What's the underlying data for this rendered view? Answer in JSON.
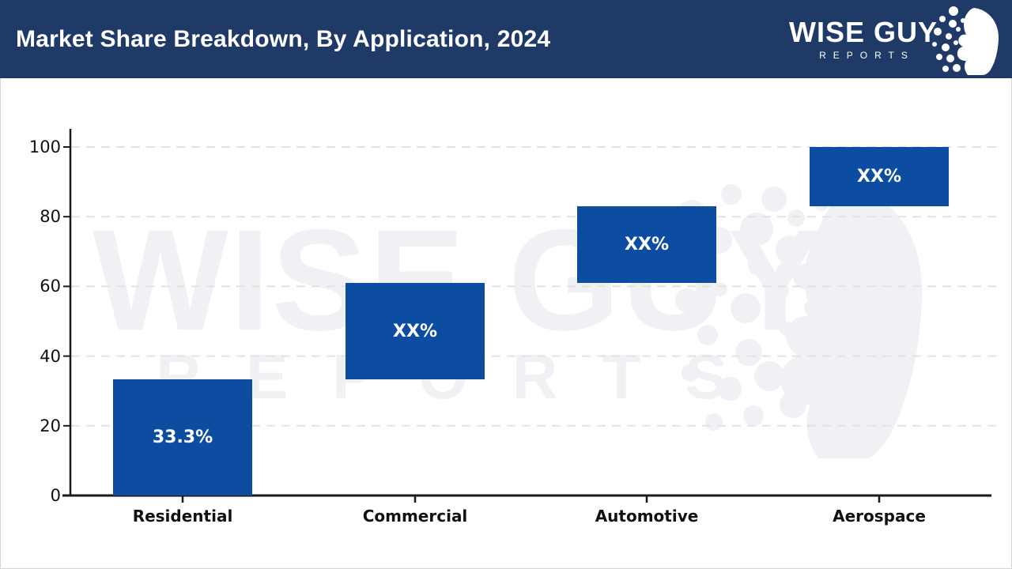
{
  "header": {
    "title": "Market Share Breakdown, By Application, 2024",
    "bg_color": "#203a68",
    "logo": {
      "line1": "WISE GUY",
      "line2": "REPORTS"
    }
  },
  "watermark": {
    "line1": "WISE GUY",
    "line2": "REPORTS"
  },
  "chart_data": {
    "type": "bar",
    "subtype": "waterfall",
    "categories": [
      "Residential",
      "Commercial",
      "Automotive",
      "Aerospace"
    ],
    "segments": [
      {
        "category": "Residential",
        "from": 0,
        "to": 33.3,
        "label": "33.3%"
      },
      {
        "category": "Commercial",
        "from": 33.3,
        "to": 61,
        "label": "XX%"
      },
      {
        "category": "Automotive",
        "from": 61,
        "to": 83,
        "label": "XX%"
      },
      {
        "category": "Aerospace",
        "from": 83,
        "to": 100,
        "label": "XX%"
      }
    ],
    "ylim": [
      0,
      100
    ],
    "yticks": [
      0,
      20,
      40,
      60,
      80,
      100
    ],
    "grid": "horizontal dashed",
    "bar_color": "#0c4da2",
    "bar_label_color": "#ffffff",
    "axis_color": "#1a1a1a",
    "gridline_color": "#e2e2e2",
    "watermark_color": "#f0f1f4"
  }
}
